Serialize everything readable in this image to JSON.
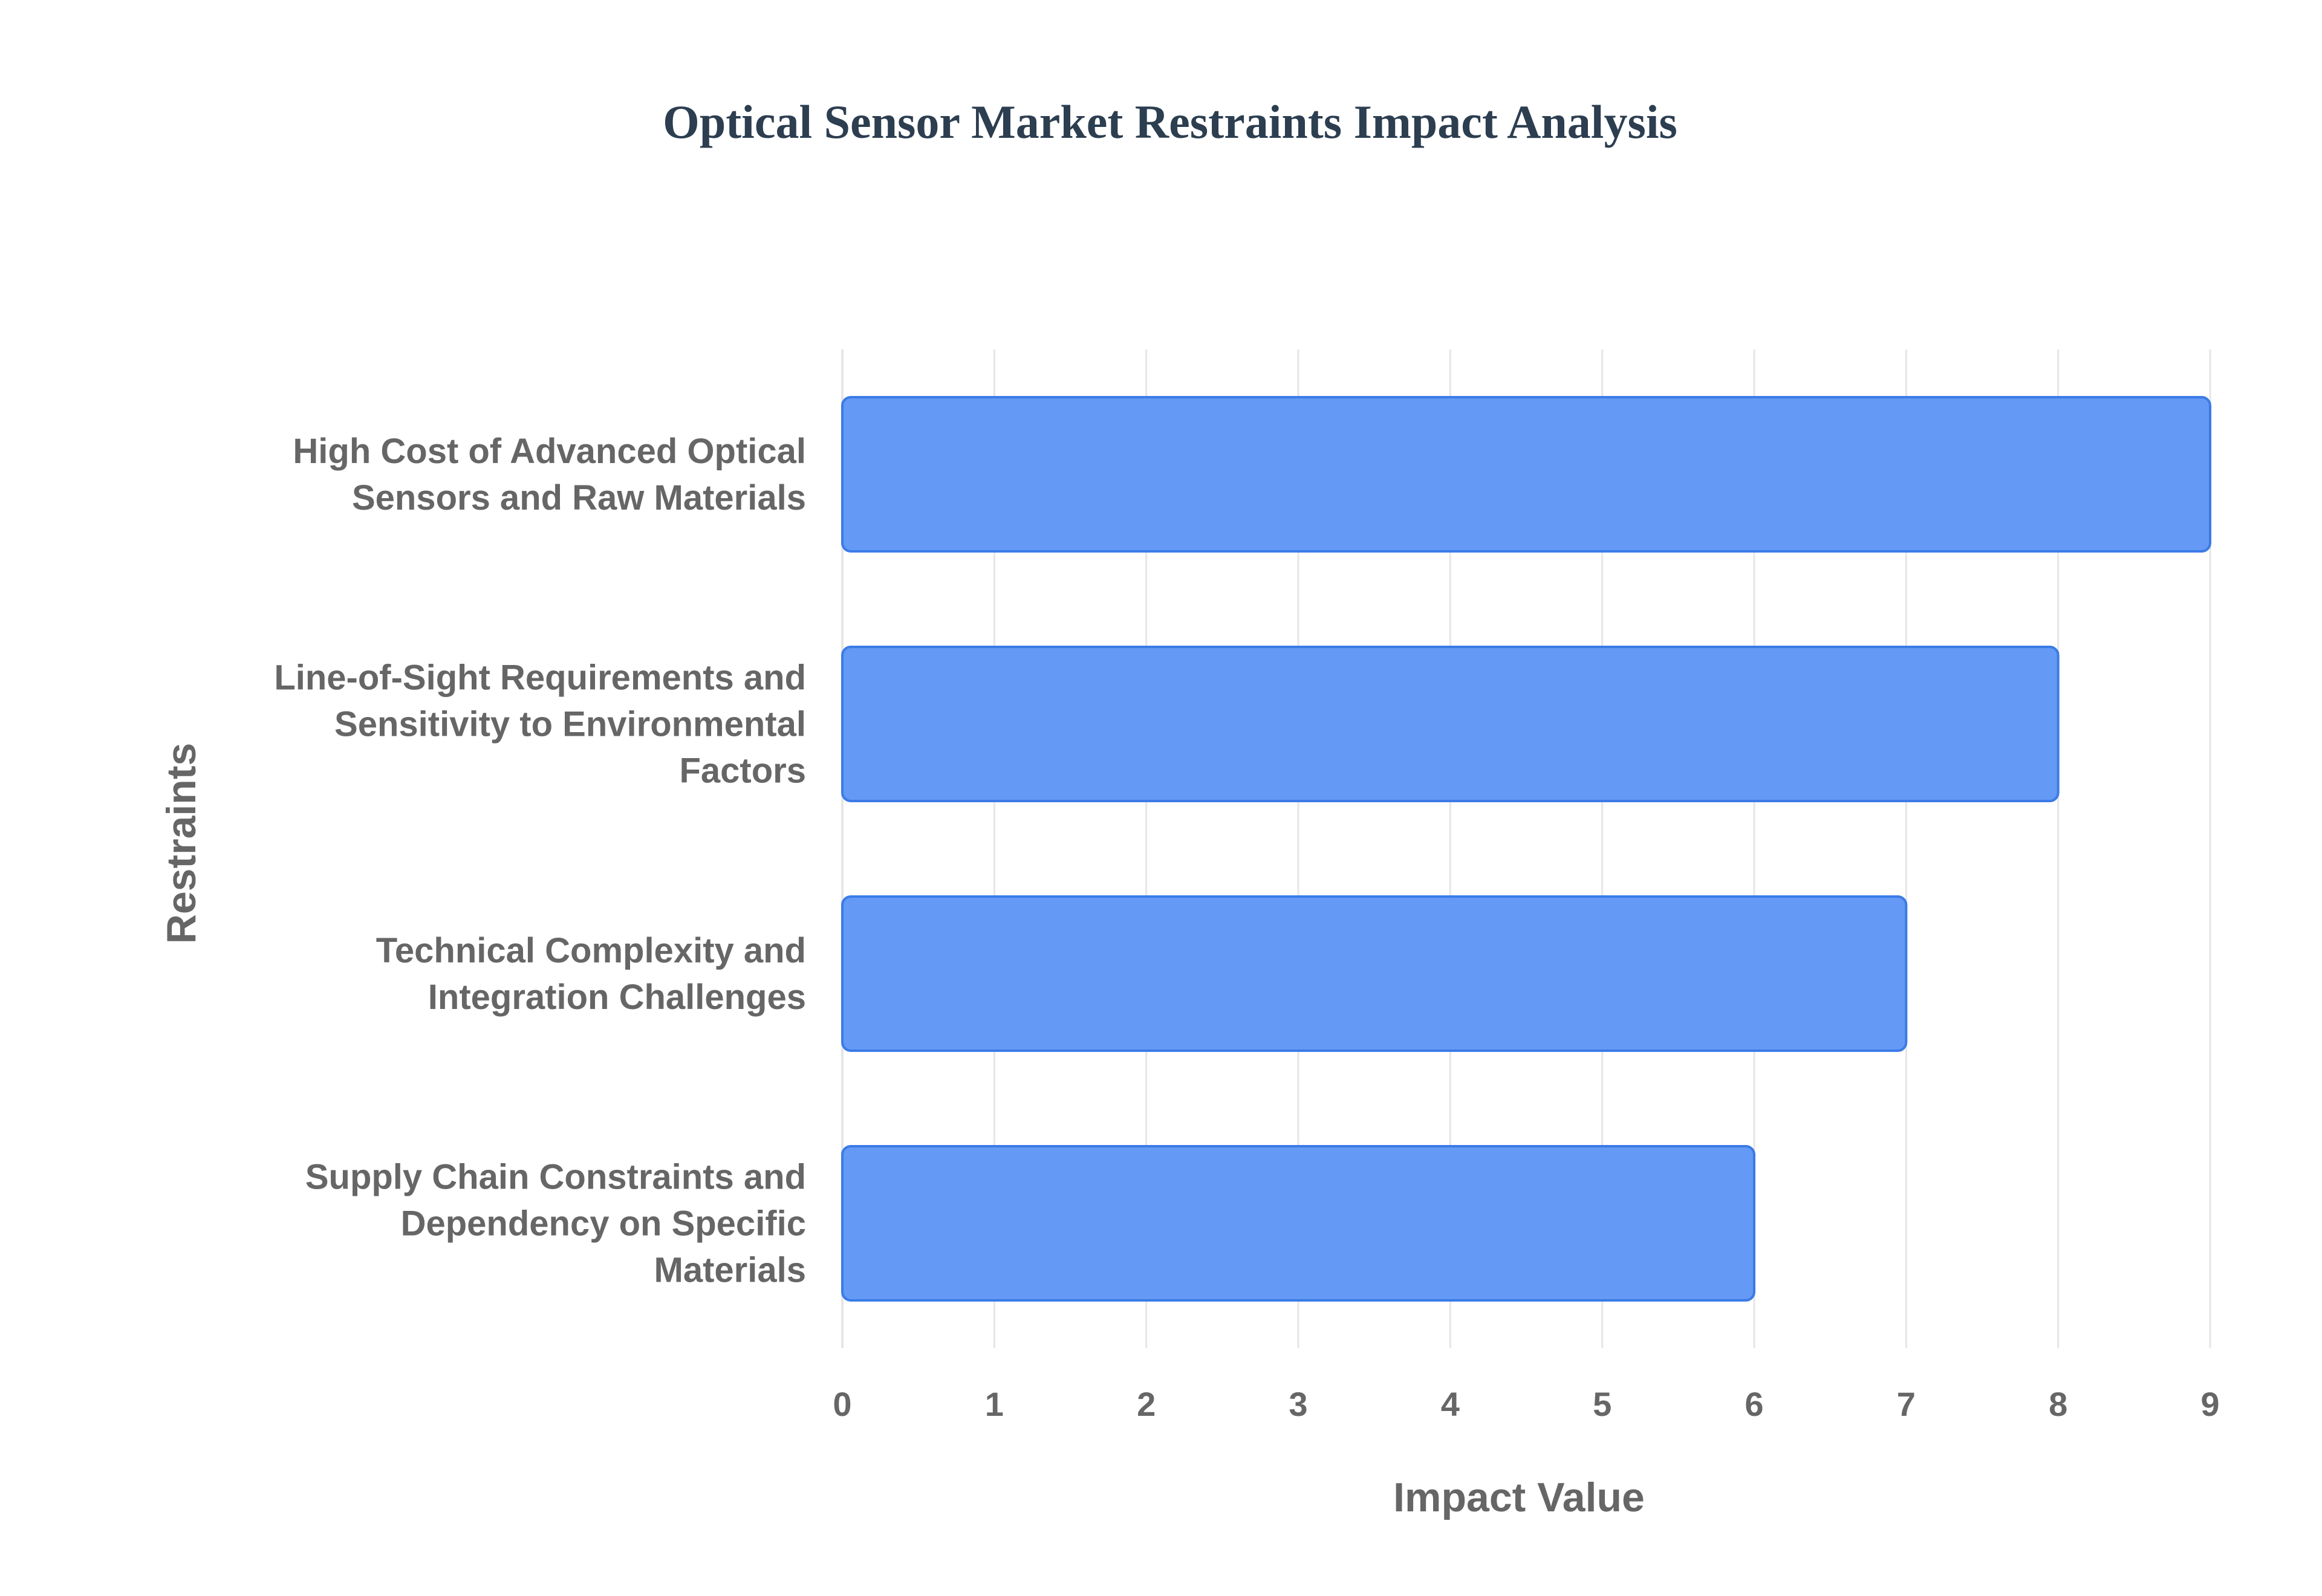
{
  "colors": {
    "title": "#2c3e50",
    "text": "#666666",
    "bar_fill": "#6499f5",
    "bar_stroke": "#3b7be6",
    "grid": "#e6e6e6",
    "background": "#ffffff"
  },
  "chart_data": {
    "type": "bar",
    "orientation": "horizontal",
    "title": "Optical Sensor Market Restraints Impact Analysis",
    "xlabel": "Impact Value",
    "ylabel": "Restraints",
    "xlim": [
      0,
      9
    ],
    "xticks": [
      "0",
      "1",
      "2",
      "3",
      "4",
      "5",
      "6",
      "7",
      "8",
      "9"
    ],
    "grid": true,
    "legend": "none",
    "categories": [
      [
        "High Cost of Advanced Optical",
        "Sensors and Raw Materials"
      ],
      [
        "Line-of-Sight Requirements and",
        "Sensitivity to Environmental",
        "Factors"
      ],
      [
        "Technical Complexity and",
        "Integration Challenges"
      ],
      [
        "Supply Chain Constraints and",
        "Dependency on Specific",
        "Materials"
      ]
    ],
    "values": [
      9,
      8,
      7,
      6
    ]
  }
}
